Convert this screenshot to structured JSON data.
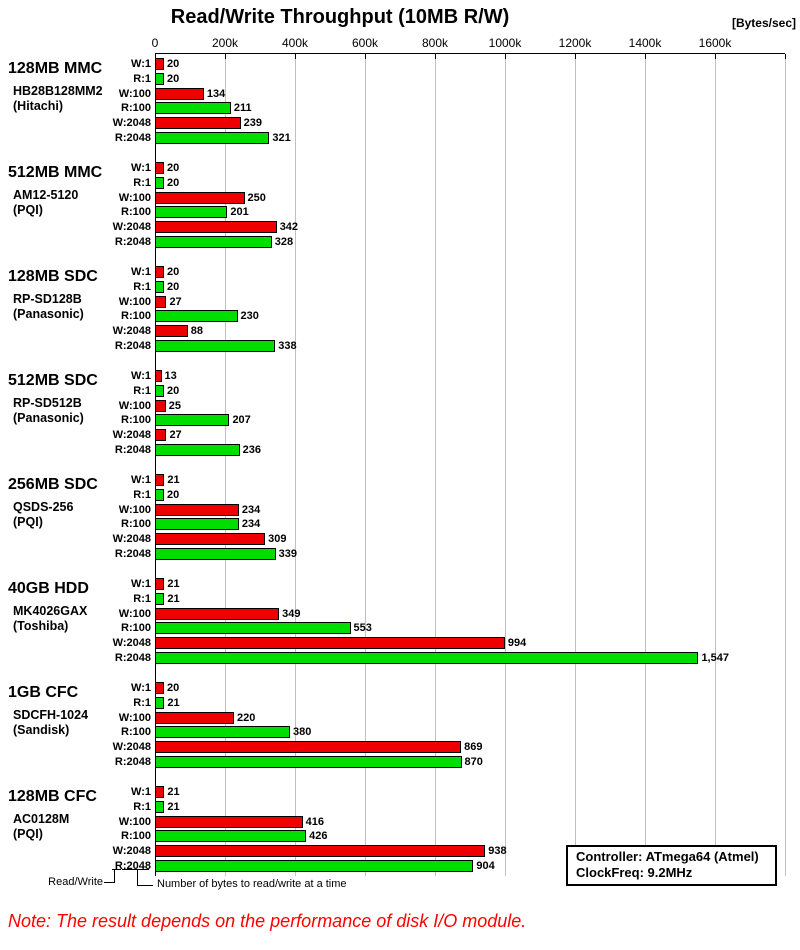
{
  "title": "Read/Write Throughput (10MB R/W)",
  "unit_label": "[Bytes/sec]",
  "note": "Note: The result depends on the performance of disk I/O module.",
  "info_box": {
    "line1": "Controller: ATmega64 (Atmel)",
    "line2": "ClockFreq: 9.2MHz"
  },
  "legend": {
    "read_write_label": "Read/Write",
    "bytes_label": "Number of bytes to read/write at a time"
  },
  "chart_data": {
    "type": "bar",
    "orientation": "horizontal",
    "title": "Read/Write Throughput (10MB R/W)",
    "value_unit": "Bytes/sec",
    "value_note": "bar labels are in units of 1000 Bytes/sec",
    "x_axis": {
      "tick_labels": [
        "0",
        "200k",
        "400k",
        "600k",
        "800k",
        "1000k",
        "1200k",
        "1400k",
        "1600k"
      ],
      "tick_step_k": 200,
      "axis_max_k": 1800,
      "grid": true
    },
    "bar_labels": [
      "W:1",
      "R:1",
      "W:100",
      "R:100",
      "W:2048",
      "R:2048"
    ],
    "bar_kinds": [
      "write",
      "read",
      "write",
      "read",
      "write",
      "read"
    ],
    "colors": {
      "write": "#ee0000",
      "read": "#00dd00",
      "gridline": "#c0c0c0",
      "note": "#ff0000"
    },
    "groups": [
      {
        "device": "128MB MMC",
        "model": "HB28B128MM2",
        "maker": "(Hitachi)",
        "values_k": [
          20,
          20,
          134,
          211,
          239,
          321
        ],
        "value_labels": [
          "20",
          "20",
          "134",
          "211",
          "239",
          "321"
        ]
      },
      {
        "device": "512MB MMC",
        "model": "AM12-5120",
        "maker": "(PQI)",
        "values_k": [
          20,
          20,
          250,
          201,
          342,
          328
        ],
        "value_labels": [
          "20",
          "20",
          "250",
          "201",
          "342",
          "328"
        ]
      },
      {
        "device": "128MB SDC",
        "model": "RP-SD128B",
        "maker": "(Panasonic)",
        "values_k": [
          20,
          20,
          27,
          230,
          88,
          338
        ],
        "value_labels": [
          "20",
          "20",
          "27",
          "230",
          "88",
          "338"
        ]
      },
      {
        "device": "512MB SDC",
        "model": "RP-SD512B",
        "maker": "(Panasonic)",
        "values_k": [
          13,
          20,
          25,
          207,
          27,
          236
        ],
        "value_labels": [
          "13",
          "20",
          "25",
          "207",
          "27",
          "236"
        ]
      },
      {
        "device": "256MB SDC",
        "model": "QSDS-256",
        "maker": "(PQI)",
        "values_k": [
          21,
          20,
          234,
          234,
          309,
          339
        ],
        "value_labels": [
          "21",
          "20",
          "234",
          "234",
          "309",
          "339"
        ]
      },
      {
        "device": "40GB HDD",
        "model": "MK4026GAX",
        "maker": "(Toshiba)",
        "values_k": [
          21,
          21,
          349,
          553,
          994,
          1547
        ],
        "value_labels": [
          "21",
          "21",
          "349",
          "553",
          "994",
          "1,547"
        ]
      },
      {
        "device": "1GB CFC",
        "model": "SDCFH-1024",
        "maker": "(Sandisk)",
        "values_k": [
          20,
          21,
          220,
          380,
          869,
          870
        ],
        "value_labels": [
          "20",
          "21",
          "220",
          "380",
          "869",
          "870"
        ]
      },
      {
        "device": "128MB CFC",
        "model": "AC0128M",
        "maker": "(PQI)",
        "values_k": [
          21,
          21,
          416,
          426,
          938,
          904
        ],
        "value_labels": [
          "21",
          "21",
          "416",
          "426",
          "938",
          "904"
        ]
      }
    ]
  }
}
